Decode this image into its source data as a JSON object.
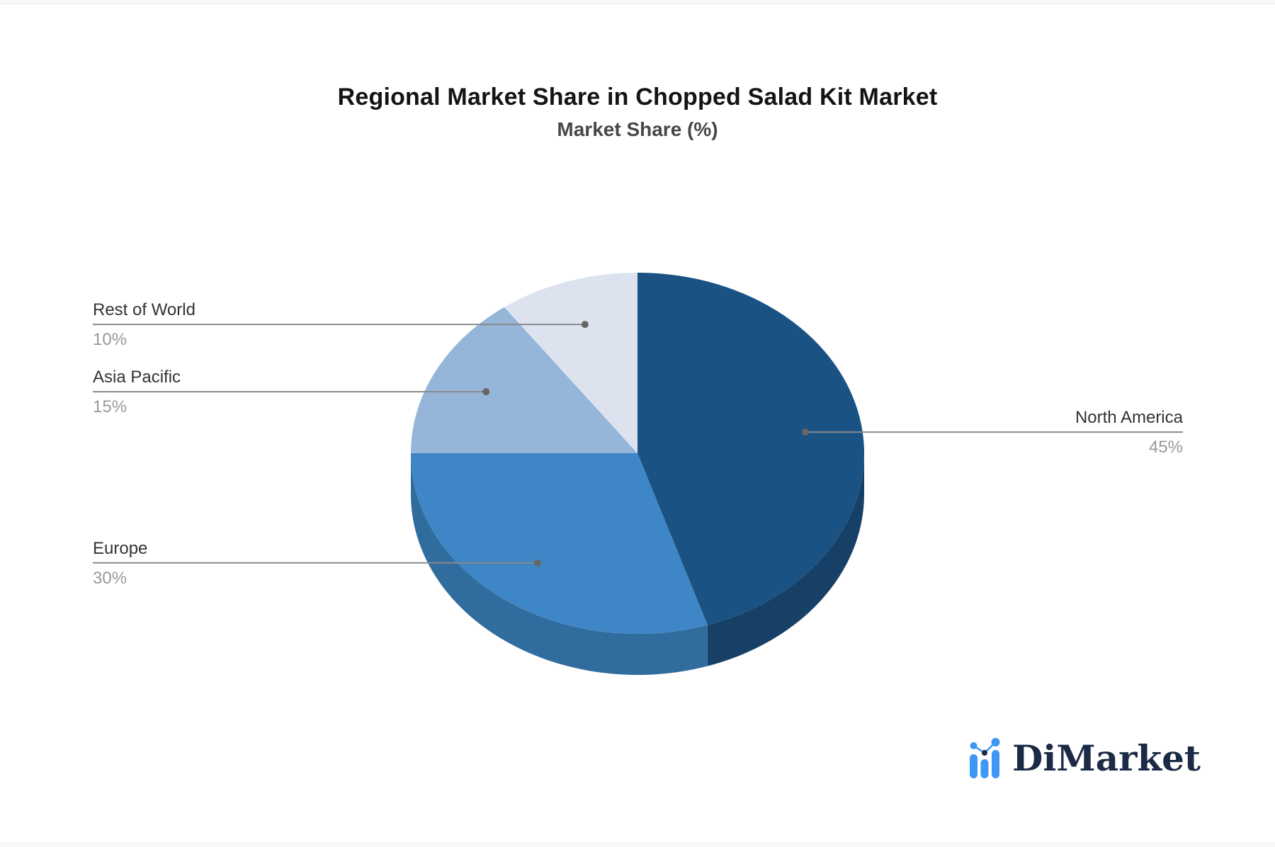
{
  "header": {
    "title": "Regional Market Share in Chopped Salad Kit Market",
    "subtitle": "Market Share (%)"
  },
  "chart_data": {
    "type": "pie",
    "style": "3d",
    "title": "Regional Market Share in Chopped Salad Kit Market",
    "subtitle": "Market Share (%)",
    "unit": "%",
    "start_angle_deg": 0,
    "direction": "clockwise",
    "legend_position": "callout-labels",
    "categories": [
      "North America",
      "Europe",
      "Asia Pacific",
      "Rest of World"
    ],
    "values": [
      45,
      30,
      15,
      10
    ],
    "segments": [
      {
        "label": "North America",
        "value": 45,
        "display": "45%",
        "color": "#1A5284",
        "color_side": "#174067"
      },
      {
        "label": "Europe",
        "value": 30,
        "display": "30%",
        "color": "#3E86C6",
        "color_side": "#316C9E"
      },
      {
        "label": "Asia Pacific",
        "value": 15,
        "display": "15%",
        "color": "#95B5D9"
      },
      {
        "label": "Rest of World",
        "value": 10,
        "display": "10%",
        "color": "#DCE3EF"
      }
    ],
    "callout_line_color": "#8A8A8A",
    "callout_dot_color": "#666666",
    "label_color": "#333333",
    "value_color": "#999999"
  },
  "logo": {
    "text": "DiMarket",
    "icon": "bar-line-chart-icon",
    "icon_color": "#3E97F5",
    "icon_dot_color": "#1C2B45",
    "text_color": "#1C2B45"
  }
}
